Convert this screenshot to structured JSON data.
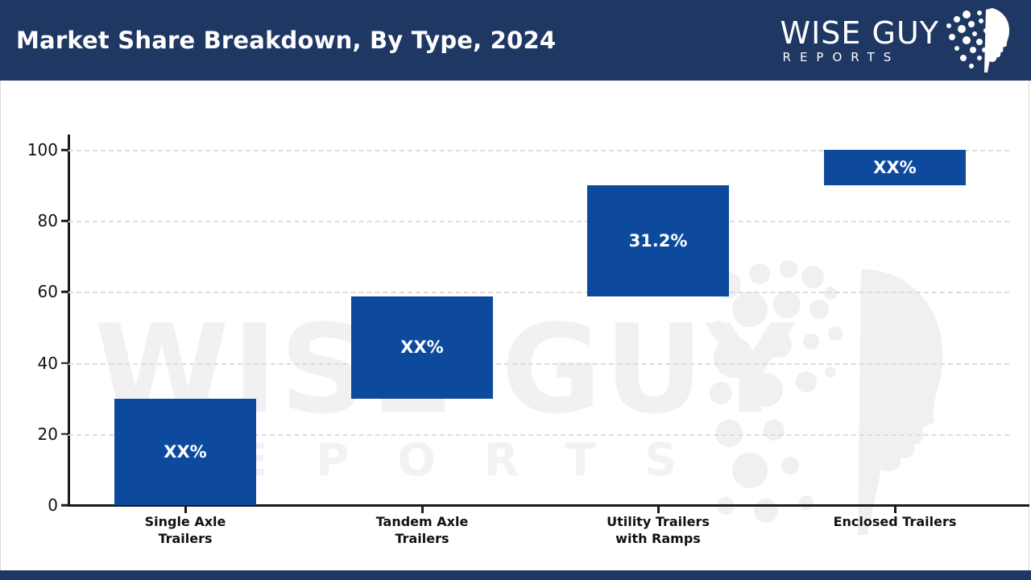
{
  "header": {
    "title": "Market Share Breakdown, By Type, 2024",
    "logo": {
      "line1": "WISE GUY",
      "line2": "REPORTS"
    }
  },
  "watermark": {
    "line1": "WISE GUY",
    "line2": "REPORTS"
  },
  "colors": {
    "header_bg": "#1f3763",
    "bar_fill": "#0d4a9e",
    "bar_label_text": "#ffffff",
    "gridline": "#dcdcdc",
    "axis": "#1a1a1a",
    "watermark": "#f1f1f1"
  },
  "chart_data": {
    "type": "bar",
    "subtype": "floating-waterfall",
    "title": "Market Share Breakdown, By Type, 2024",
    "xlabel": "",
    "ylabel": "",
    "ylim": [
      0,
      105
    ],
    "yticks": [
      0,
      20,
      40,
      60,
      80,
      100
    ],
    "grid": "horizontal-dashed",
    "legend": "none",
    "categories": [
      "Single Axle\nTrailers",
      "Tandem Axle\nTrailers",
      "Utility Trailers\nwith Ramps",
      "Enclosed Trailers"
    ],
    "bars": [
      {
        "category": "Single Axle Trailers",
        "start": 0,
        "end": 30,
        "value": 30,
        "label": "XX%"
      },
      {
        "category": "Tandem Axle Trailers",
        "start": 30,
        "end": 58.8,
        "value": 28.8,
        "label": "XX%"
      },
      {
        "category": "Utility Trailers with Ramps",
        "start": 58.8,
        "end": 90,
        "value": 31.2,
        "label": "31.2%"
      },
      {
        "category": "Enclosed Trailers",
        "start": 90,
        "end": 100,
        "value": 10,
        "label": "XX%"
      }
    ]
  }
}
